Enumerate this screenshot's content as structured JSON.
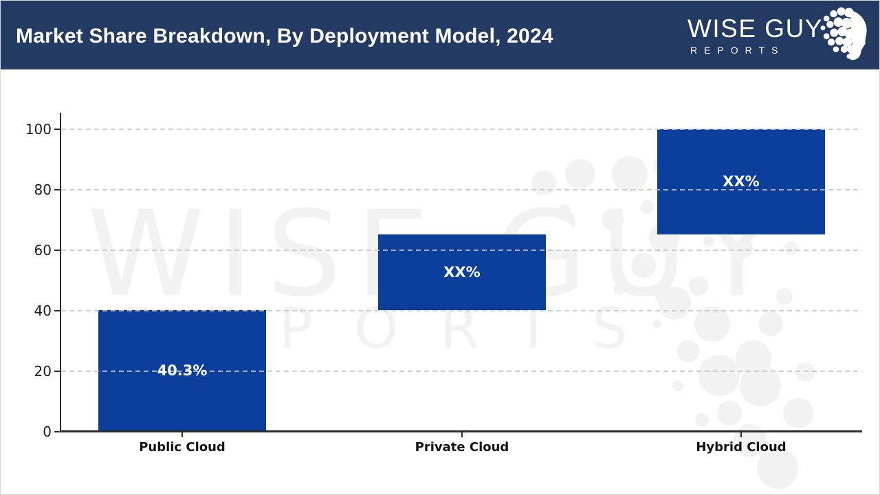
{
  "header": {
    "title": "Market Share Breakdown, By Deployment Model, 2024",
    "bg_color": "#233A63",
    "logo": {
      "line1": "WISE GUY",
      "line2": "REPORTS"
    }
  },
  "watermark": {
    "line1": "WISE GUY",
    "line2": "REPORTS"
  },
  "chart_data": {
    "type": "bar",
    "variant": "floating-stacked-percentage",
    "title": "Market Share Breakdown, By Deployment Model, 2024",
    "categories": [
      "Public Cloud",
      "Private Cloud",
      "Hybrid Cloud"
    ],
    "series": [
      {
        "name": "Public Cloud",
        "start": 0,
        "end": 40.3,
        "label": "40.3%"
      },
      {
        "name": "Private Cloud",
        "start": 40.3,
        "end": 65.3,
        "label": "XX%"
      },
      {
        "name": "Hybrid Cloud",
        "start": 65.3,
        "end": 100,
        "label": "XX%"
      }
    ],
    "xlabel": "",
    "ylabel": "",
    "ylim": [
      0,
      100
    ],
    "yticks": [
      0,
      20,
      40,
      60,
      80,
      100
    ],
    "grid": "horizontal-dashed",
    "grid_color": "#d4d4d6",
    "bar_color": "#0C3F9B",
    "value_label_color": "#ffffff",
    "legend": "none"
  }
}
